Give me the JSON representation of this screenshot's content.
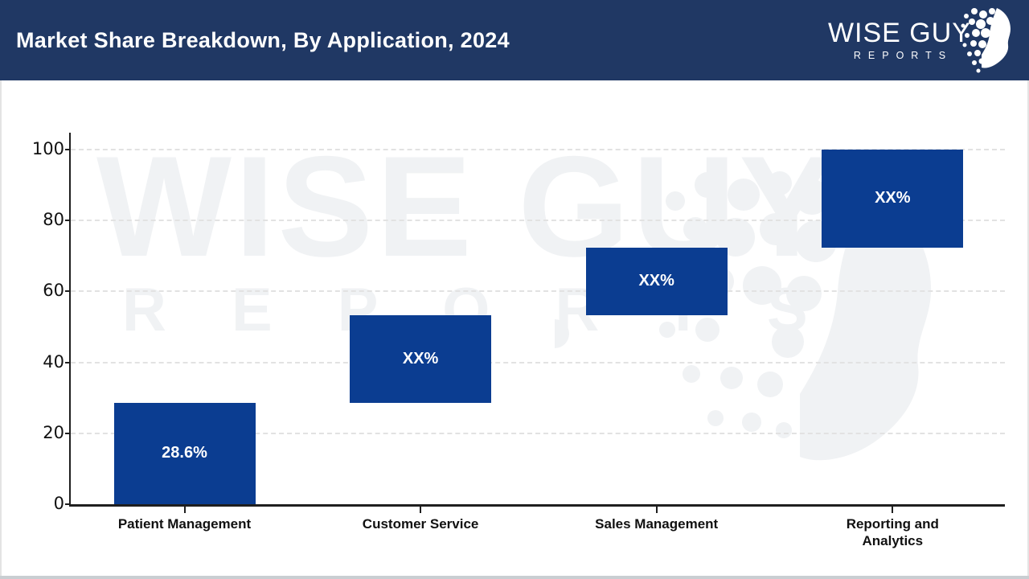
{
  "header": {
    "title": "Market Share Breakdown, By Application, 2024",
    "logo": {
      "name": "Wise Guy Reports logo",
      "line1": "WISE GUY",
      "line2": "REPORTS"
    }
  },
  "watermark": {
    "line1": "WISE GUY",
    "line2": "R E P O R T S"
  },
  "chart_data": {
    "type": "bar",
    "subtype": "floating-waterfall",
    "title": "Market Share Breakdown, By Application, 2024",
    "categories": [
      "Patient Management",
      "Customer Service",
      "Sales Management",
      "Reporting and\nAnalytics"
    ],
    "segments": [
      {
        "category": "Patient Management",
        "start": 0,
        "end": 28.6,
        "label": "28.6%"
      },
      {
        "category": "Customer Service",
        "start": 28.6,
        "end": 53.2,
        "label": "XX%"
      },
      {
        "category": "Sales Management",
        "start": 53.2,
        "end": 72.3,
        "label": "XX%"
      },
      {
        "category": "Reporting and Analytics",
        "start": 72.3,
        "end": 100,
        "label": "XX%"
      }
    ],
    "ylim": [
      0,
      100
    ],
    "yticks": [
      0,
      20,
      40,
      60,
      80,
      100
    ],
    "xlabel": "",
    "ylabel": "",
    "grid": "horizontal-dashed",
    "legend": "none",
    "bar_color": "#0b3d91",
    "bar_label_color": "#ffffff"
  },
  "colors": {
    "header_bg": "#203864",
    "bar": "#0b3d91",
    "watermark": "#f0f2f4",
    "gridline": "#e2e2e2",
    "axis": "#1f1f1f",
    "bottom_rule": "#c9ced2"
  }
}
